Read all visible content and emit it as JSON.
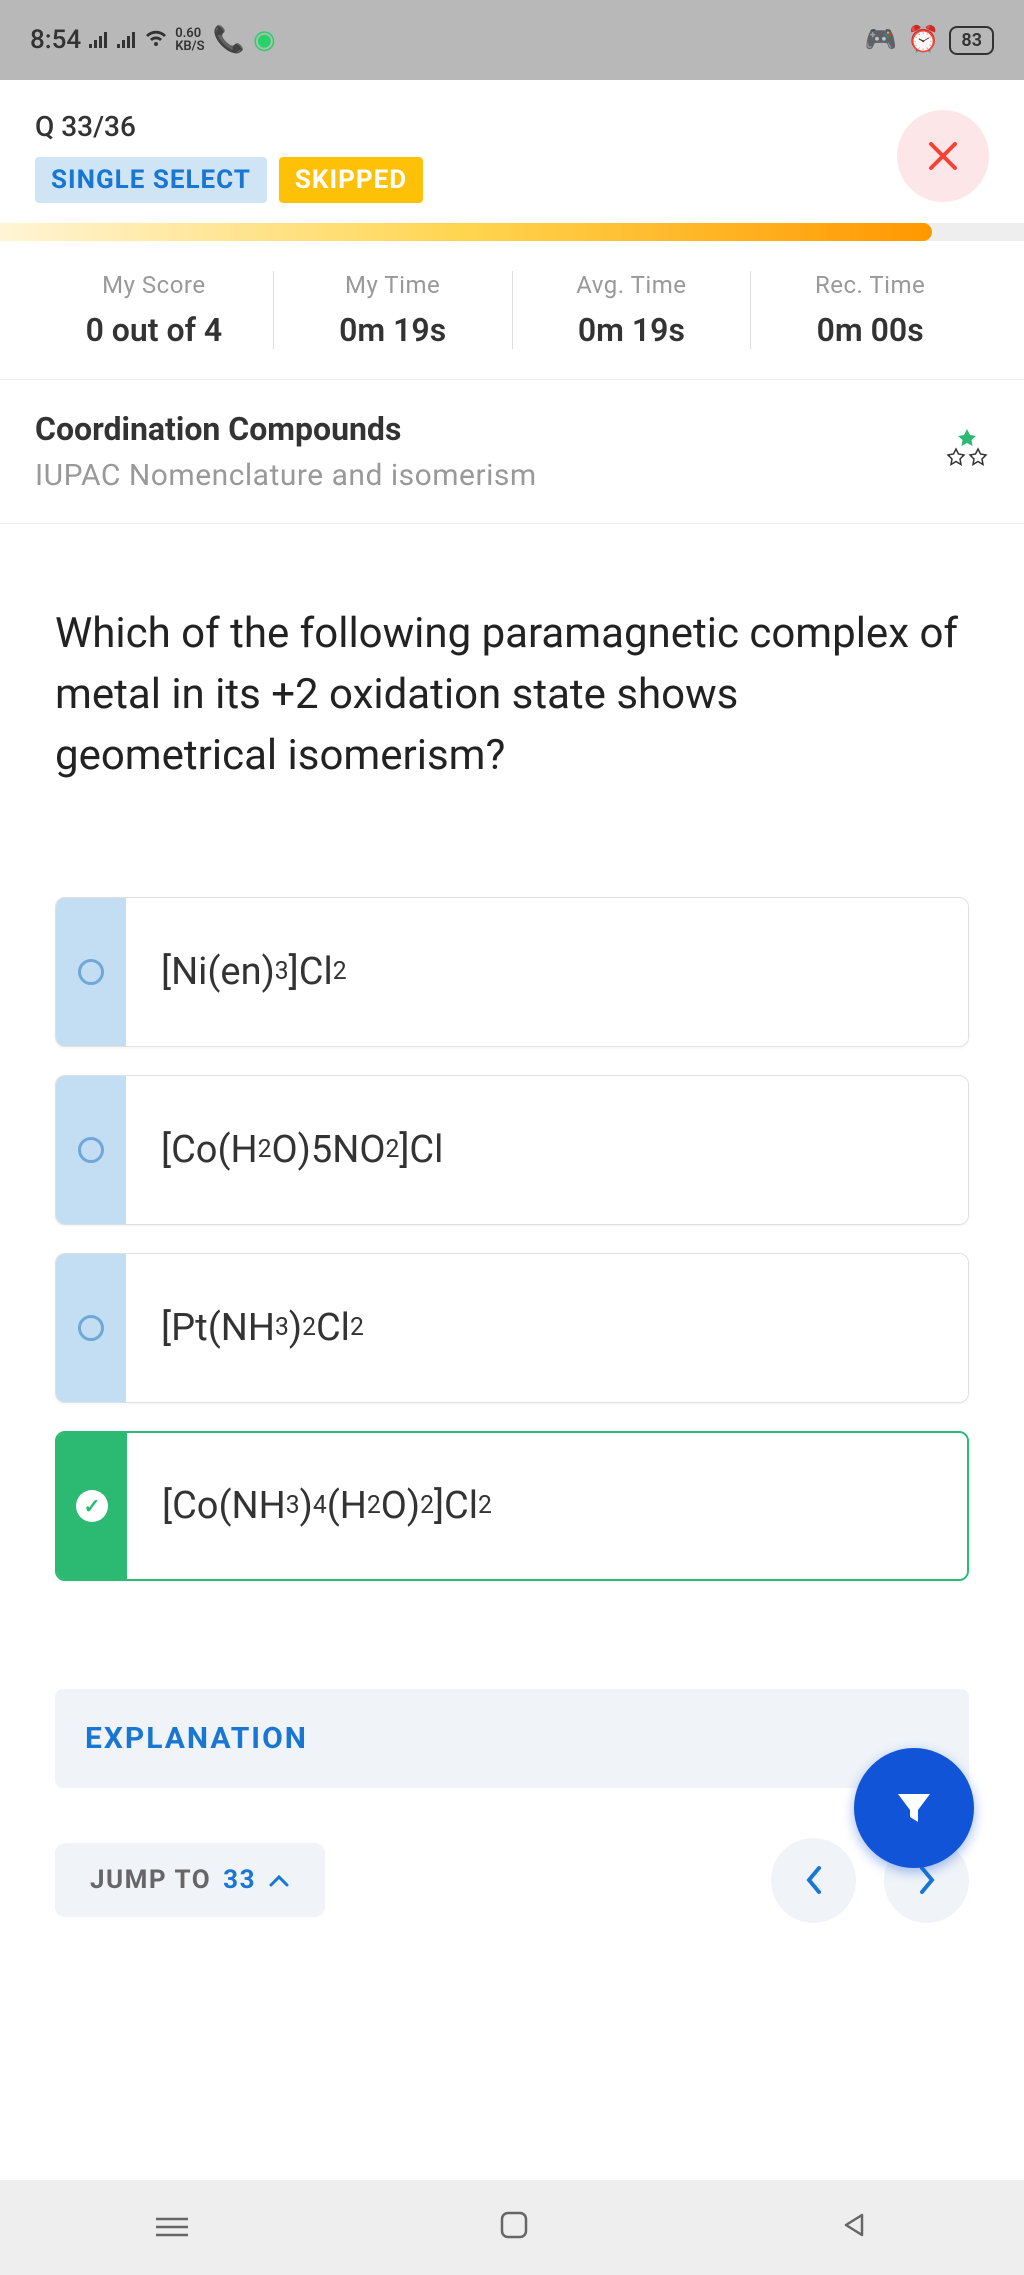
{
  "status_bar": {
    "time": "8:54",
    "kbps": "0.60",
    "kbps_label": "KB/S",
    "battery": "83"
  },
  "header": {
    "q_prefix": "Q",
    "q_current": "33",
    "q_total": "36",
    "badge_select": "SINGLE SELECT",
    "badge_skipped": "SKIPPED"
  },
  "progress": {
    "percent": 91
  },
  "stats": [
    {
      "label": "My Score",
      "value": "0 out of 4"
    },
    {
      "label": "My Time",
      "value": "0m 19s"
    },
    {
      "label": "Avg. Time",
      "value": "0m 19s"
    },
    {
      "label": "Rec. Time",
      "value": "0m 00s"
    }
  ],
  "topic": {
    "title": "Coordination Compounds",
    "subtitle": "IUPAC Nomenclature and isomerism"
  },
  "question": "Which of the following paramagnetic complex of metal in its +2 oxidation state shows geometrical isomerism?",
  "options": [
    {
      "html": "[Ni(en)<sub>3</sub>]Cl<sub>2</sub>",
      "correct": false
    },
    {
      "html": "[Co(H<sub>2</sub>O)5NO<sub>2</sub>]Cl",
      "correct": false
    },
    {
      "html": "[Pt(NH<sub>3</sub>)<sub>2</sub>Cl<sub>2</sub>",
      "correct": false
    },
    {
      "html": "[Co(NH<sub>3</sub>)<sub>4</sub>(H<sub>2</sub>O)<sub>2</sub>]Cl<sub>2</sub>",
      "correct": true
    }
  ],
  "explanation_label": "EXPLANATION",
  "jump": {
    "label": "JUMP TO",
    "num": "33"
  },
  "colors": {
    "primary_blue": "#1254d8",
    "light_blue": "#c3ddf3",
    "green": "#2cba72",
    "amber": "#ffc107",
    "close_red": "#f44336"
  }
}
